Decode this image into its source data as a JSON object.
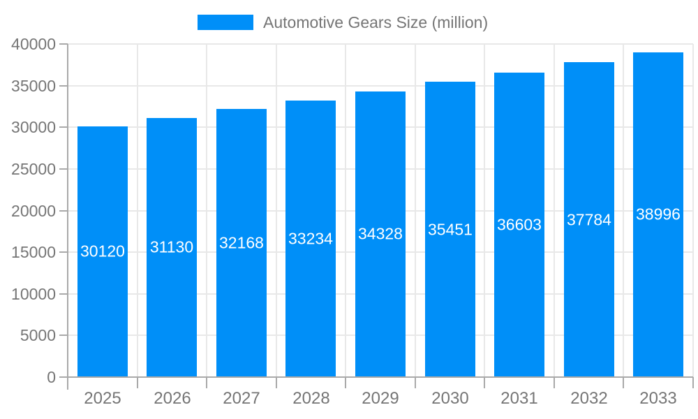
{
  "legend": {
    "series_label": "Automotive Gears Size (million)"
  },
  "chart_data": {
    "type": "bar",
    "title": "Automotive Gears Size (million)",
    "categories": [
      "2025",
      "2026",
      "2027",
      "2028",
      "2029",
      "2030",
      "2031",
      "2032",
      "2033"
    ],
    "series": [
      {
        "name": "Automotive Gears Size (million)",
        "values": [
          30120,
          31130,
          32168,
          33234,
          34328,
          35451,
          36603,
          37784,
          38996
        ]
      }
    ],
    "values": [
      30120,
      31130,
      32168,
      33234,
      34328,
      35451,
      36603,
      37784,
      38996
    ],
    "value_labels": [
      "30120",
      "31130",
      "32168",
      "33234",
      "34328",
      "35451",
      "36603",
      "37784",
      "38996"
    ],
    "xlabel": "",
    "ylabel": "",
    "ylim": [
      0,
      40000
    ],
    "ytick_step": 5000,
    "ytick_labels": [
      "0",
      "5000",
      "10000",
      "15000",
      "20000",
      "25000",
      "30000",
      "35000",
      "40000"
    ],
    "grid": true,
    "legend_position": "top",
    "colors": {
      "bar": "#008FF8",
      "value_label": "#FFFFFF",
      "axis_text": "#757575",
      "grid_line": "#E8E8E8",
      "axis_line": "#A9A9A9",
      "background": "#FFFFFF"
    }
  }
}
